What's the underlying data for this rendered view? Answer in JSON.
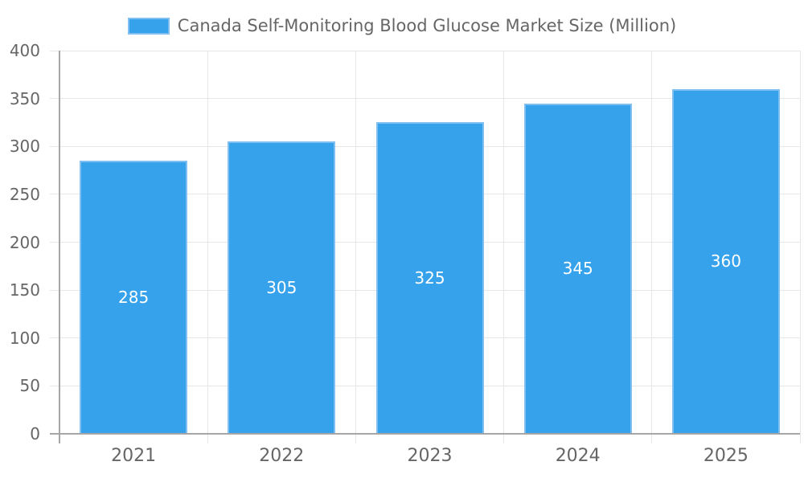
{
  "legend": {
    "label": "Canada Self-Monitoring Blood Glucose Market Size (Million)"
  },
  "chart_data": {
    "type": "bar",
    "title": "Canada Self-Monitoring Blood Glucose Market Size (Million)",
    "categories": [
      "2021",
      "2022",
      "2023",
      "2024",
      "2025"
    ],
    "values": [
      285,
      305,
      325,
      345,
      360
    ],
    "series": [
      {
        "name": "Canada Self-Monitoring Blood Glucose Market Size (Million)",
        "values": [
          285,
          305,
          325,
          345,
          360
        ]
      }
    ],
    "xlabel": "",
    "ylabel": "",
    "ylim": [
      0,
      400
    ],
    "y_ticks": [
      0,
      50,
      100,
      150,
      200,
      250,
      300,
      350,
      400
    ],
    "grid": true,
    "legend_position": "top",
    "value_labels_position": "inside-center",
    "colors": {
      "bar_fill": "#36A2EB",
      "bar_edge": "#7FC0F0",
      "value_label": "#FFFFFF",
      "axis_text": "#666666",
      "grid_line": "#E6E6E6",
      "axis_line": "#A6A6A6",
      "background": "#FFFFFF"
    }
  }
}
